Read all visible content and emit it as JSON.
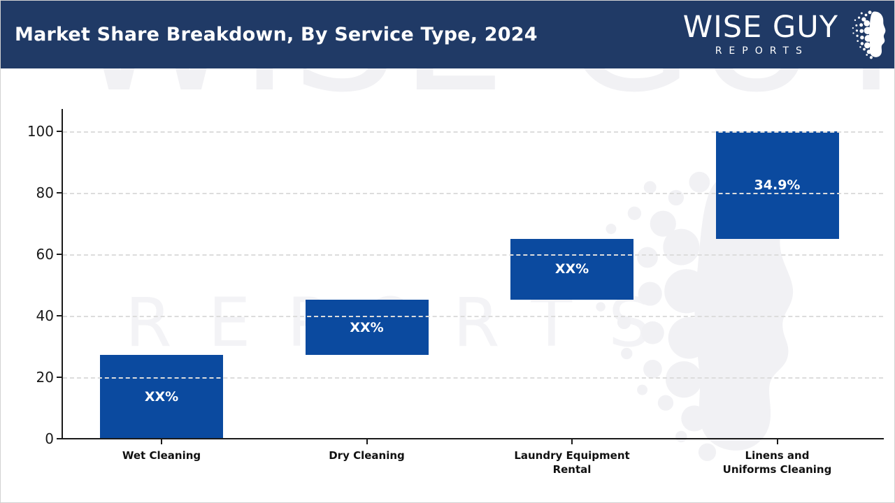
{
  "header": {
    "title": "Market Share Breakdown, By Service Type, 2024",
    "logo": {
      "name": "WISE GUY",
      "tagline": "REPORTS"
    }
  },
  "watermark": {
    "line1": "WISE GUY",
    "line2": "REPORTS"
  },
  "colors": {
    "header_bg": "#203a66",
    "bar_fill": "#0b4a9f",
    "bar_label_text": "#ffffff",
    "grid_line": "#dcdcdc",
    "axis_line": "#1a1a1a",
    "watermark": "#f1f1f4",
    "page_bg": "#ffffff"
  },
  "chart_data": {
    "type": "bar",
    "subtype": "floating-waterfall",
    "title": "Market Share Breakdown, By Service Type, 2024",
    "categories": [
      "Wet Cleaning",
      "Dry Cleaning",
      "Laundry Equipment Rental",
      "Linens and Uniforms Cleaning"
    ],
    "category_label_lines": [
      [
        "Wet Cleaning"
      ],
      [
        "Dry Cleaning"
      ],
      [
        "Laundry Equipment",
        "Rental"
      ],
      [
        "Linens and",
        "Uniforms Cleaning"
      ]
    ],
    "bars": [
      {
        "category": "Wet Cleaning",
        "start": 0,
        "end": 27.2,
        "value_label": "XX%"
      },
      {
        "category": "Dry Cleaning",
        "start": 27.2,
        "end": 45.2,
        "value_label": "XX%"
      },
      {
        "category": "Laundry Equipment Rental",
        "start": 45.2,
        "end": 65.1,
        "value_label": "XX%"
      },
      {
        "category": "Linens and Uniforms Cleaning",
        "start": 65.1,
        "end": 100,
        "value_label": "34.9%"
      }
    ],
    "yticks": [
      0,
      20,
      40,
      60,
      80,
      100
    ],
    "ylim": [
      0,
      106
    ],
    "xlabel": "",
    "ylabel": "",
    "grid": "horizontal-dashed-over-bars",
    "legend": "none"
  }
}
